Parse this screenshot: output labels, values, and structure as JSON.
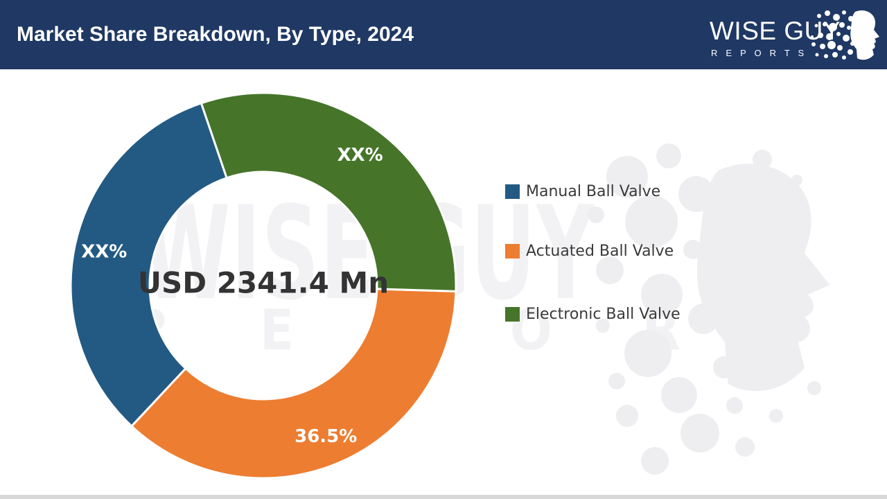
{
  "header": {
    "title": "Market Share Breakdown, By Type, 2024",
    "logo": {
      "line1": "WISE GUY",
      "line2": "R E P O R T S"
    }
  },
  "watermark": {
    "line1": "WISE GUY",
    "line2": "R E P O R T S"
  },
  "chart_data": {
    "type": "pie",
    "subtype": "donut",
    "title": "Market Share Breakdown, By Type, 2024",
    "center_label": "USD 2341.4 Mn",
    "donut_hole_ratio": 0.59,
    "start_angle_deg": 108.8,
    "direction": "counterclockwise",
    "legend_position": "right",
    "segments": [
      {
        "name": "Manual Ball Valve",
        "value_pct": 32.8,
        "display_label": "XX%",
        "color": "#235a83"
      },
      {
        "name": "Actuated Ball Valve",
        "value_pct": 36.5,
        "display_label": "36.5%",
        "color": "#ed7d31"
      },
      {
        "name": "Electronic Ball Valve",
        "value_pct": 30.7,
        "display_label": "XX%",
        "color": "#46752a"
      }
    ]
  },
  "colors": {
    "header_bg": "#1f3864",
    "center_text": "#333333",
    "legend_text": "#3a3a3a",
    "footer_bar": "#d8d8d8",
    "watermark": "#eeeef1"
  }
}
